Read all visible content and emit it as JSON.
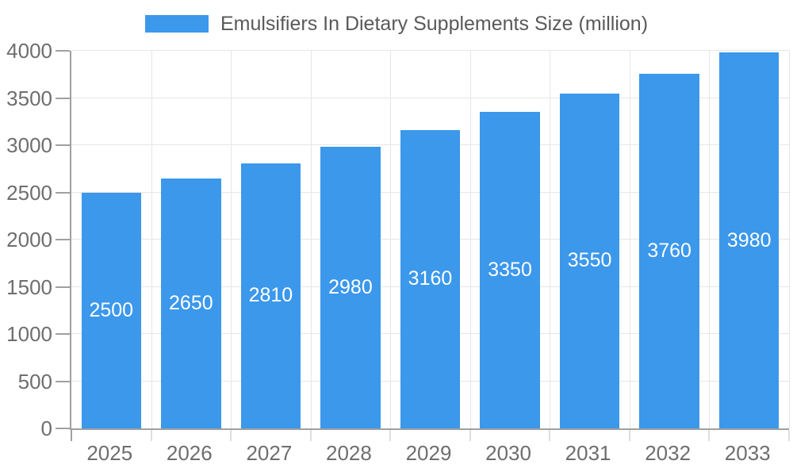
{
  "legend": {
    "label": "Emulsifiers In Dietary Supplements Size (million)"
  },
  "chart_data": {
    "type": "bar",
    "title": "Emulsifiers In Dietary Supplements Size (million)",
    "categories": [
      "2025",
      "2026",
      "2027",
      "2028",
      "2029",
      "2030",
      "2031",
      "2032",
      "2033"
    ],
    "values": [
      2500,
      2650,
      2810,
      2980,
      3160,
      3350,
      3550,
      3760,
      3980
    ],
    "xlabel": "",
    "ylabel": "",
    "ylim": [
      0,
      4000
    ],
    "yticks": [
      0,
      500,
      1000,
      1500,
      2000,
      2500,
      3000,
      3500,
      4000
    ],
    "grid": true,
    "legend_position": "top-center",
    "bar_color": "#3b98eb",
    "bar_label_color": "#ffffff",
    "axis_label_color": "#6e6e6e",
    "legend_text_color": "#595959"
  }
}
